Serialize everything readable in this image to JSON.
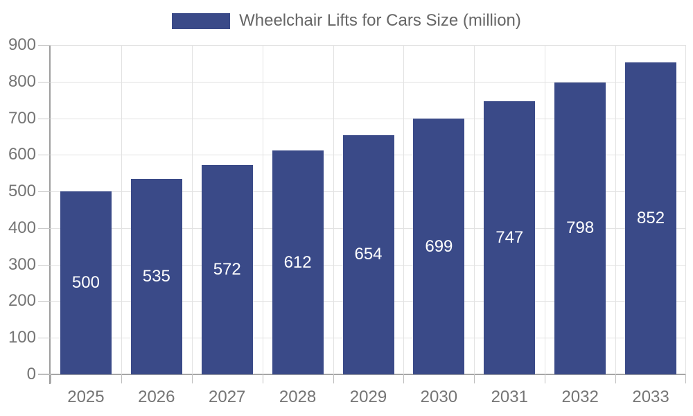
{
  "legend": {
    "label": "Wheelchair Lifts for Cars Size (million)"
  },
  "chart_data": {
    "type": "bar",
    "title": "Wheelchair Lifts for Cars Size (million)",
    "categories": [
      "2025",
      "2026",
      "2027",
      "2028",
      "2029",
      "2030",
      "2031",
      "2032",
      "2033"
    ],
    "values": [
      500,
      535,
      572,
      612,
      654,
      699,
      747,
      798,
      852
    ],
    "xlabel": "",
    "ylabel": "",
    "ylim": [
      0,
      900
    ],
    "ytick_step": 100,
    "ytick_labels": [
      "0",
      "100",
      "200",
      "300",
      "400",
      "500",
      "600",
      "700",
      "800",
      "900"
    ],
    "grid": true,
    "legend_position": "top-center",
    "value_labels": "inside-center"
  },
  "colors": {
    "bar": "#3A4A88",
    "grid": "#e2e2e2",
    "axis": "#9e9e9e",
    "tick": "#bdbdbd",
    "tick_label_text": "#757575",
    "legend_text": "#666666",
    "value_label_text": "#ffffff",
    "background": "#ffffff"
  }
}
